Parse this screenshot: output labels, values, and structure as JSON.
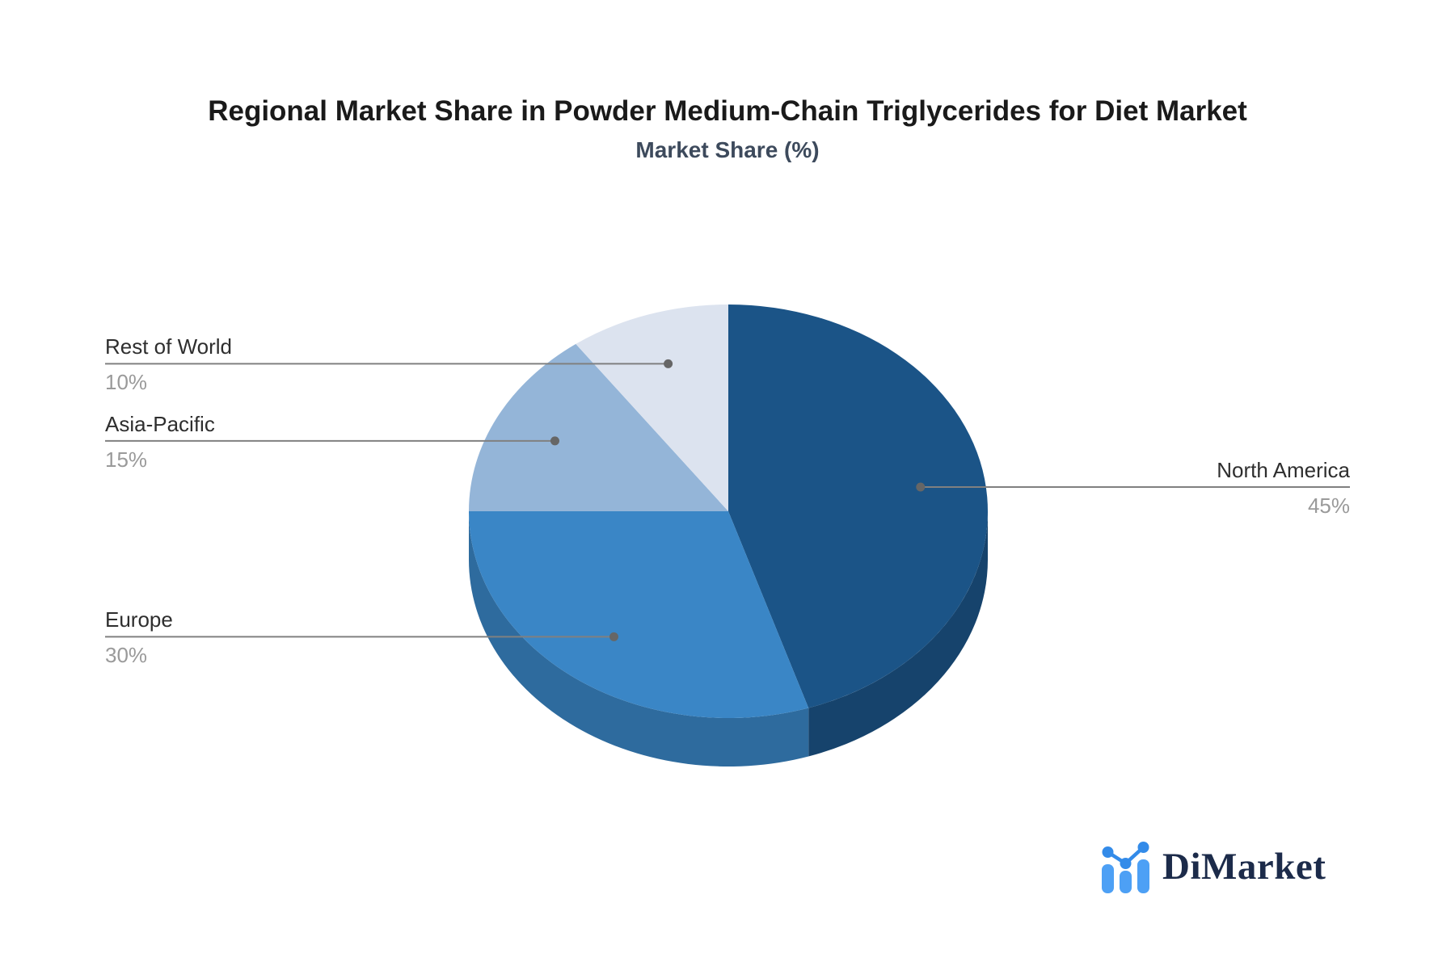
{
  "header": {
    "title": "Regional Market Share in Powder Medium-Chain Triglycerides for Diet Market",
    "subtitle": "Market Share (%)",
    "title_color": "#1a1a1a",
    "subtitle_color": "#3d4a5c"
  },
  "chart_data": {
    "type": "pie",
    "style": "3d",
    "title": "Regional Market Share in Powder Medium-Chain Triglycerides for Diet Market",
    "subtitle": "Market Share (%)",
    "unit": "%",
    "start_angle_deg": 0,
    "direction": "clockwise",
    "slices": [
      {
        "label": "North America",
        "value": 45,
        "display": "45%",
        "color": "#1B5487",
        "label_side": "right"
      },
      {
        "label": "Europe",
        "value": 30,
        "display": "30%",
        "color": "#3A86C6",
        "label_side": "left"
      },
      {
        "label": "Asia-Pacific",
        "value": 15,
        "display": "15%",
        "color": "#94B5D8",
        "label_side": "left"
      },
      {
        "label": "Rest of World",
        "value": 10,
        "display": "10%",
        "color": "#DCE3EF",
        "label_side": "left"
      }
    ],
    "legend": "connector-labels",
    "label_text_color": "#2e2e2e",
    "value_text_color": "#9a9a9a",
    "leader_line_color": "#808080",
    "leader_dot_color": "#666666"
  },
  "branding": {
    "logo_text": "DiMarket",
    "logo_text_color": "#1c2b4a",
    "logo_icon": "bar-line-chart-icon",
    "icon_bar_color": "#4DA0F5",
    "icon_dot_color": "#338BE9"
  }
}
